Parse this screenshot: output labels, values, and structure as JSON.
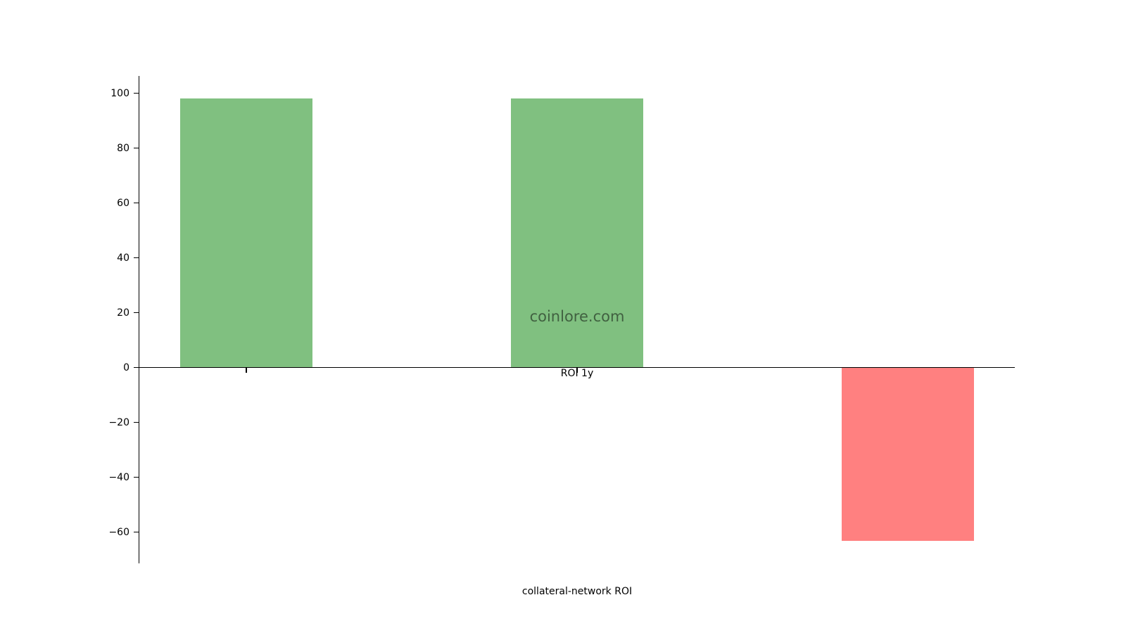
{
  "chart_data": {
    "type": "bar",
    "title": "collateral-network ROI",
    "xlabel": "collateral-network ROI",
    "ylabel": "",
    "watermark": "coinlore.com",
    "categories": [
      "",
      "ROI 1y",
      ""
    ],
    "values": [
      98.2,
      98.2,
      -63.2
    ],
    "bar_colors": [
      "#80c080",
      "#80c080",
      "#ff8080"
    ],
    "positive_color": "#80c080",
    "negative_color": "#ff8080",
    "yticks": [
      {
        "value": 100,
        "label": "100"
      },
      {
        "value": 80,
        "label": "80"
      },
      {
        "value": 60,
        "label": "60"
      },
      {
        "value": 40,
        "label": "40"
      },
      {
        "value": 20,
        "label": "20"
      },
      {
        "value": 0,
        "label": "0"
      },
      {
        "value": -20,
        "label": "−20"
      },
      {
        "value": -40,
        "label": "−40"
      },
      {
        "value": -60,
        "label": "−60"
      }
    ],
    "ylim": [
      -71.3,
      106.2
    ],
    "grid": false,
    "legend": null,
    "axis_color": "#000000",
    "text_color": "#000000",
    "background_color": "#ffffff"
  }
}
